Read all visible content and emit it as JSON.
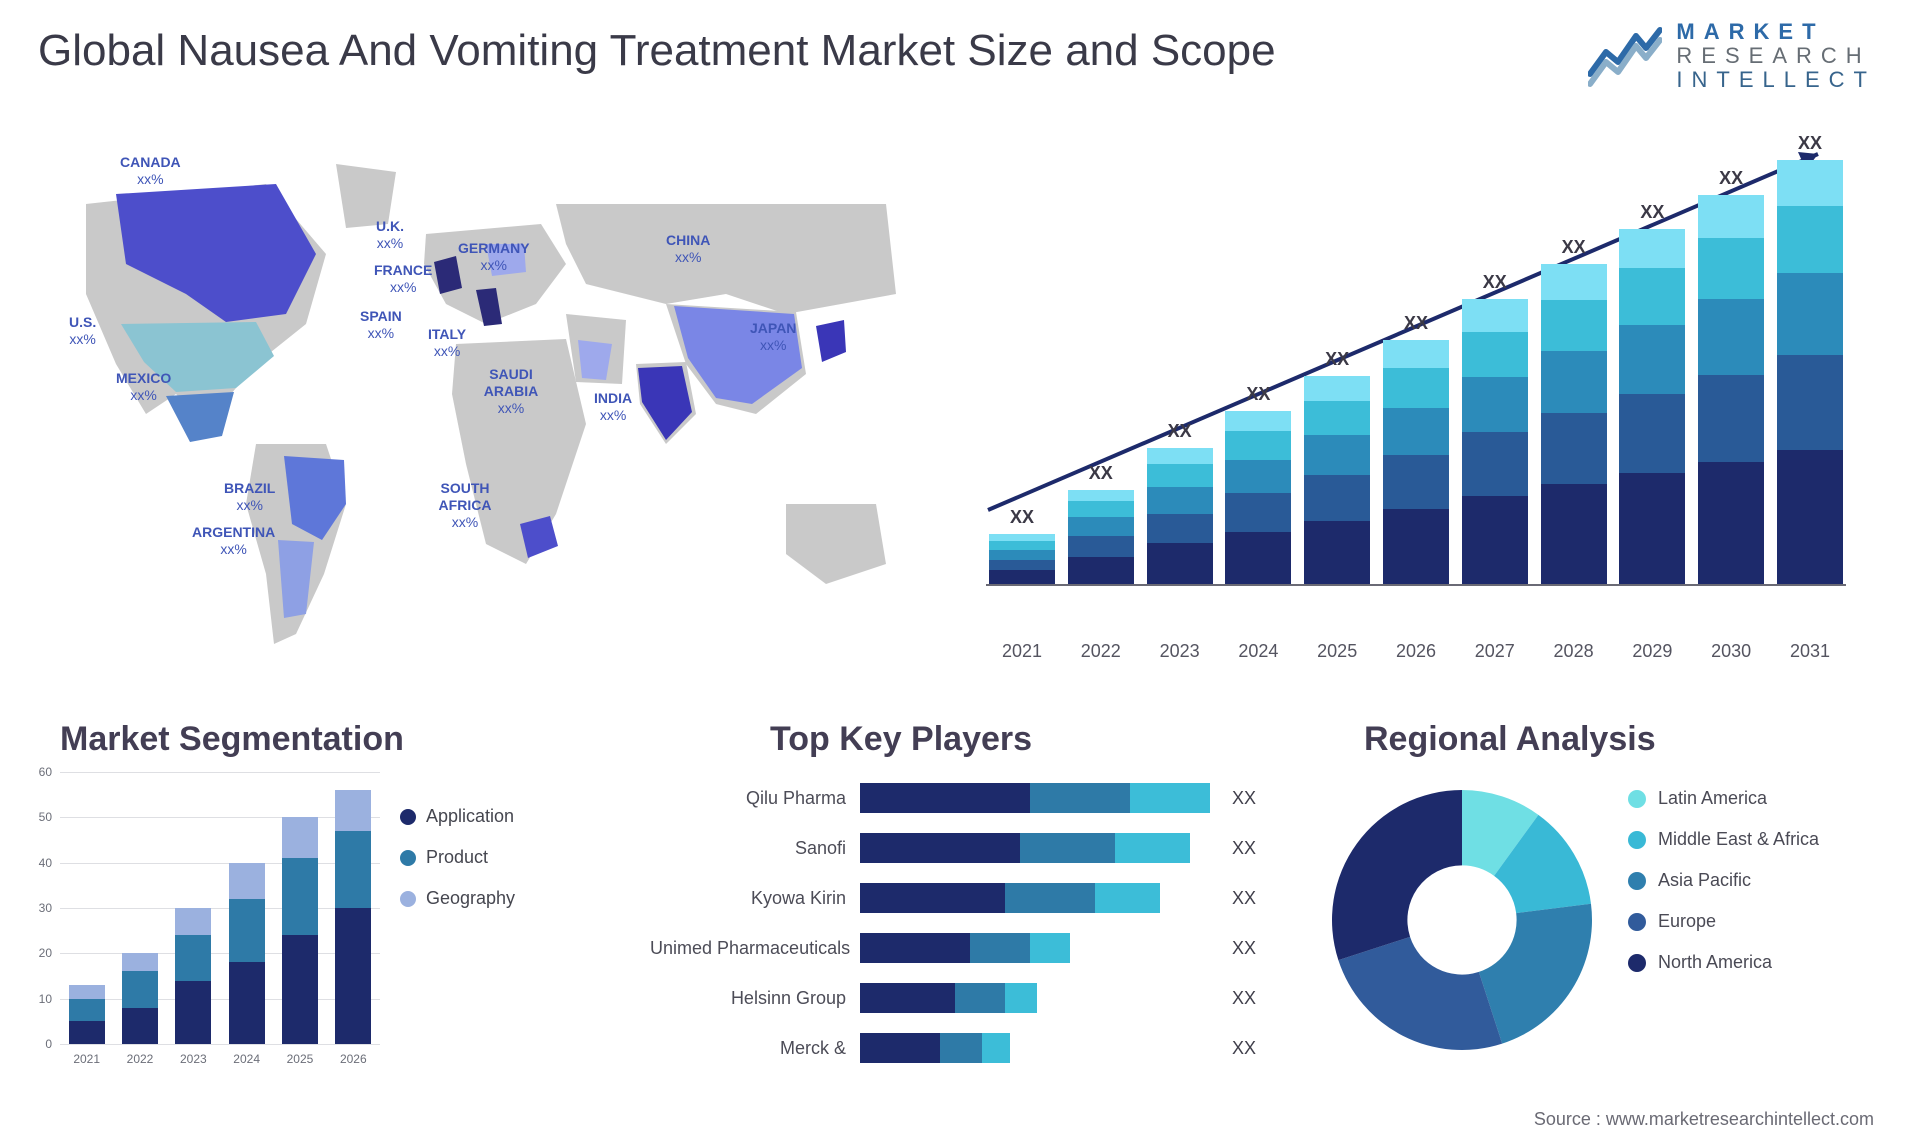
{
  "title": "Global Nausea And Vomiting Treatment Market Size and Scope",
  "logo": {
    "line1": "MARKET",
    "line2": "RESEARCH",
    "line3": "INTELLECT",
    "color1": "#2d6aa8",
    "color2": "#666d74",
    "color3": "#37648c"
  },
  "source": "Source : www.marketresearchintellect.com",
  "map": {
    "land_color": "#c9c9c9",
    "highlight_colors": {
      "dark": "#2b2a77",
      "blue": "#4d4ecb",
      "mid": "#6f7ce0",
      "light": "#9ea9ec",
      "teal": "#8bc4d2"
    },
    "labels": [
      {
        "id": "canada",
        "name": "CANADA",
        "pct": "xx%",
        "cls": "lbl-canada"
      },
      {
        "id": "us",
        "name": "U.S.",
        "pct": "xx%",
        "cls": "lbl-us"
      },
      {
        "id": "mexico",
        "name": "MEXICO",
        "pct": "xx%",
        "cls": "lbl-mexico"
      },
      {
        "id": "brazil",
        "name": "BRAZIL",
        "pct": "xx%",
        "cls": "lbl-brazil"
      },
      {
        "id": "argentina",
        "name": "ARGENTINA",
        "pct": "xx%",
        "cls": "lbl-argentina"
      },
      {
        "id": "uk",
        "name": "U.K.",
        "pct": "xx%",
        "cls": "lbl-uk"
      },
      {
        "id": "france",
        "name": "FRANCE",
        "pct": "xx%",
        "cls": "lbl-france"
      },
      {
        "id": "spain",
        "name": "SPAIN",
        "pct": "xx%",
        "cls": "lbl-spain"
      },
      {
        "id": "germany",
        "name": "GERMANY",
        "pct": "xx%",
        "cls": "lbl-germany"
      },
      {
        "id": "italy",
        "name": "ITALY",
        "pct": "xx%",
        "cls": "lbl-italy"
      },
      {
        "id": "saudi",
        "name": "SAUDI ARABIA",
        "pct": "xx%",
        "cls": "lbl-saudi"
      },
      {
        "id": "safrica",
        "name": "SOUTH AFRICA",
        "pct": "xx%",
        "cls": "lbl-safrica"
      },
      {
        "id": "india",
        "name": "INDIA",
        "pct": "xx%",
        "cls": "lbl-india"
      },
      {
        "id": "china",
        "name": "CHINA",
        "pct": "xx%",
        "cls": "lbl-china"
      },
      {
        "id": "japan",
        "name": "JAPAN",
        "pct": "xx%",
        "cls": "lbl-japan"
      }
    ]
  },
  "barchart": {
    "type": "stacked-bar",
    "years": [
      "2021",
      "2022",
      "2023",
      "2024",
      "2025",
      "2026",
      "2027",
      "2028",
      "2029",
      "2030",
      "2031"
    ],
    "bar_label": "XX",
    "max_total": 380,
    "colors": [
      "#1d2a6b",
      "#295a97",
      "#2c8bba",
      "#3cbdd8",
      "#7ddff4"
    ],
    "bars": [
      {
        "year": "2021",
        "segs": [
          12,
          9,
          9,
          8,
          6
        ]
      },
      {
        "year": "2022",
        "segs": [
          24,
          18,
          17,
          14,
          10
        ]
      },
      {
        "year": "2023",
        "segs": [
          36,
          26,
          24,
          20,
          14
        ]
      },
      {
        "year": "2024",
        "segs": [
          46,
          34,
          30,
          25,
          18
        ]
      },
      {
        "year": "2025",
        "segs": [
          56,
          40,
          36,
          30,
          22
        ]
      },
      {
        "year": "2026",
        "segs": [
          66,
          48,
          42,
          35,
          25
        ]
      },
      {
        "year": "2027",
        "segs": [
          78,
          56,
          49,
          40,
          29
        ]
      },
      {
        "year": "2028",
        "segs": [
          88,
          63,
          55,
          45,
          32
        ]
      },
      {
        "year": "2029",
        "segs": [
          98,
          70,
          61,
          50,
          35
        ]
      },
      {
        "year": "2030",
        "segs": [
          108,
          77,
          67,
          54,
          38
        ]
      },
      {
        "year": "2031",
        "segs": [
          118,
          84,
          73,
          59,
          41
        ]
      }
    ],
    "arrow_color": "#1d2a6b"
  },
  "segmentation": {
    "title": "Market Segmentation",
    "type": "stacked-bar",
    "ymax": 60,
    "yticks": [
      0,
      10,
      20,
      30,
      40,
      50,
      60
    ],
    "years": [
      "2021",
      "2022",
      "2023",
      "2024",
      "2025",
      "2026"
    ],
    "colors": {
      "application": "#1d2a6b",
      "product": "#2e7aa7",
      "geography": "#9bb1df"
    },
    "legend": [
      {
        "label": "Application",
        "color": "#1d2a6b"
      },
      {
        "label": "Product",
        "color": "#2e7aa7"
      },
      {
        "label": "Geography",
        "color": "#9bb1df"
      }
    ],
    "bars": [
      {
        "year": "2021",
        "segs": [
          5,
          5,
          3
        ]
      },
      {
        "year": "2022",
        "segs": [
          8,
          8,
          4
        ]
      },
      {
        "year": "2023",
        "segs": [
          14,
          10,
          6
        ]
      },
      {
        "year": "2024",
        "segs": [
          18,
          14,
          8
        ]
      },
      {
        "year": "2025",
        "segs": [
          24,
          17,
          9
        ]
      },
      {
        "year": "2026",
        "segs": [
          30,
          17,
          9
        ]
      }
    ]
  },
  "keyplayers": {
    "title": "Top Key Players",
    "type": "stacked-hbar",
    "max": 360,
    "colors": [
      "#1d2a6b",
      "#2e7aa7",
      "#3cbdd8"
    ],
    "value_label": "XX",
    "rows": [
      {
        "name": "Qilu Pharma",
        "segs": [
          170,
          100,
          80
        ]
      },
      {
        "name": "Sanofi",
        "segs": [
          160,
          95,
          75
        ]
      },
      {
        "name": "Kyowa Kirin",
        "segs": [
          145,
          90,
          65
        ]
      },
      {
        "name": "Unimed Pharmaceuticals",
        "segs": [
          110,
          60,
          40
        ]
      },
      {
        "name": "Helsinn Group",
        "segs": [
          95,
          50,
          32
        ]
      },
      {
        "name": "Merck &",
        "segs": [
          80,
          42,
          28
        ]
      }
    ]
  },
  "regional": {
    "title": "Regional Analysis",
    "type": "donut",
    "inner_ratio": 0.42,
    "slices": [
      {
        "label": "Latin America",
        "value": 10,
        "color": "#6fdfe4"
      },
      {
        "label": "Middle East & Africa",
        "value": 13,
        "color": "#39b9d6"
      },
      {
        "label": "Asia Pacific",
        "value": 22,
        "color": "#2f7fae"
      },
      {
        "label": "Europe",
        "value": 25,
        "color": "#315b9b"
      },
      {
        "label": "North America",
        "value": 30,
        "color": "#1d2a6b"
      }
    ]
  }
}
